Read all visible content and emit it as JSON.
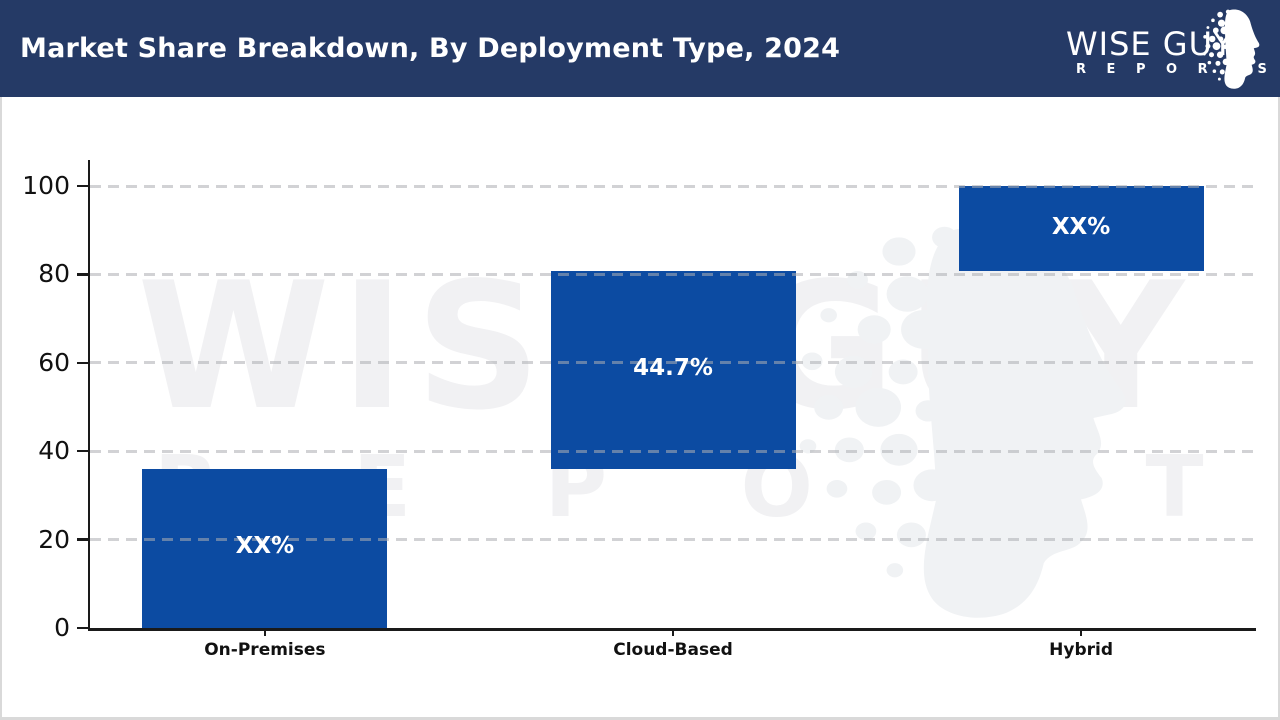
{
  "header": {
    "title": "Market Share Breakdown, By Deployment Type, 2024",
    "logo": {
      "line1": "WISE GUY",
      "line2": "R E P O R T S"
    }
  },
  "watermark": {
    "line1": "WISE GUY",
    "line2": "R E P O R T S"
  },
  "colors": {
    "header_bg": "#253A66",
    "bar": "#0C4BA2",
    "bar_label": "#FFFFFF",
    "grid": "rgba(172,174,178,0.55)",
    "axis": "#1A1A1A",
    "tick_label": "#111111",
    "watermark": "#F1F1F3"
  },
  "chart_data": {
    "type": "bar",
    "subtype": "waterfall",
    "title": "Market Share Breakdown, By Deployment Type, 2024",
    "categories": [
      "On-Premises",
      "Cloud-Based",
      "Hybrid"
    ],
    "segments": [
      {
        "category": "On-Premises",
        "start": 0,
        "end": 36,
        "value": 36,
        "value_label": "XX%"
      },
      {
        "category": "Cloud-Based",
        "start": 36,
        "end": 80.7,
        "value": 44.7,
        "value_label": "44.7%"
      },
      {
        "category": "Hybrid",
        "start": 80.7,
        "end": 100,
        "value": 19.3,
        "value_label": "XX%"
      }
    ],
    "xlabel": "",
    "ylabel": "",
    "ylim": [
      0,
      105
    ],
    "yticks": [
      0,
      20,
      40,
      60,
      80,
      100
    ],
    "grid": "dashed-horizontal-over-bars",
    "legend": "none"
  }
}
